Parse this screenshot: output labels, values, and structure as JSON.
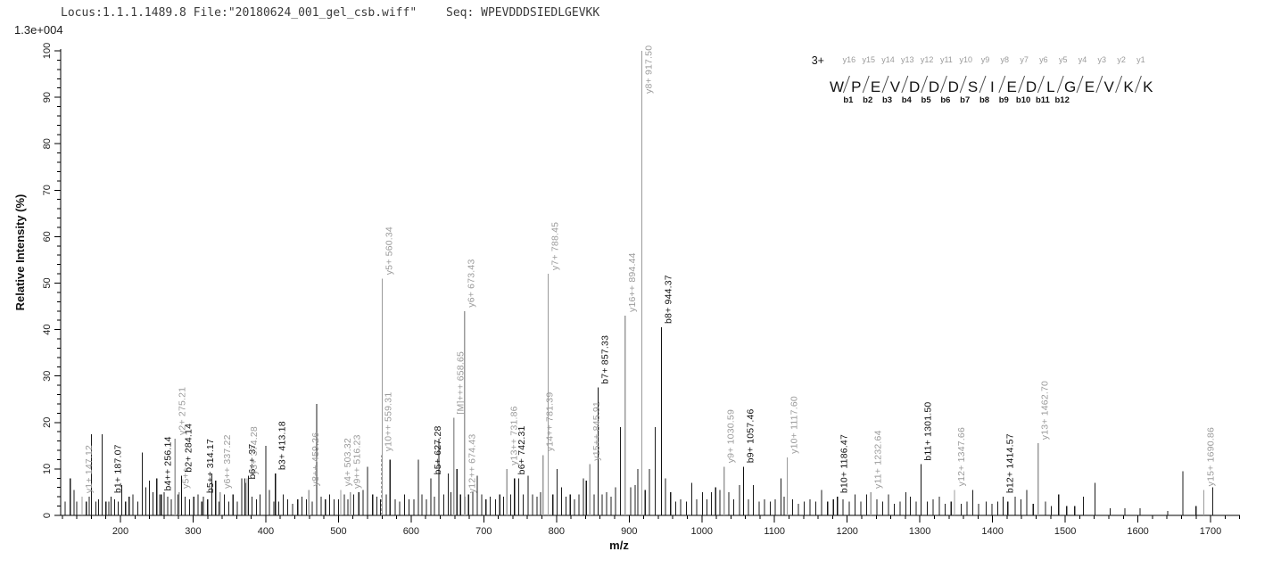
{
  "header": {
    "locus_file": "Locus:1.1.1.1489.8 File:\"20180624_001_gel_csb.wiff\"",
    "seq_label": "Seq: WPEVDDDSIEDLGEVKK",
    "scale_factor": "1.3e+004"
  },
  "axes": {
    "y_title": "Relative  Intensity  (%)",
    "x_title": "m/z",
    "y_ticks": [
      0,
      10,
      20,
      30,
      40,
      50,
      60,
      70,
      80,
      90,
      100
    ],
    "x_ticks": [
      200,
      300,
      400,
      500,
      600,
      700,
      800,
      900,
      1000,
      1100,
      1200,
      1300,
      1400,
      1500,
      1600,
      1700
    ],
    "x_minor_step": 20,
    "y_minor_step": 2,
    "xlim": [
      118,
      1741
    ],
    "ylim": [
      0,
      100
    ]
  },
  "peptide": {
    "charge": "3+",
    "sequence": [
      "W",
      "P",
      "E",
      "V",
      "D",
      "D",
      "D",
      "S",
      "I",
      "E",
      "D",
      "L",
      "G",
      "E",
      "V",
      "K",
      "K"
    ],
    "y_ions": [
      "y16",
      "y15",
      "y14",
      "y13",
      "y12",
      "y11",
      "y10",
      "y9",
      "y8",
      "y7",
      "y6",
      "y5",
      "y4",
      "y3",
      "y2",
      "y1"
    ],
    "b_ions": [
      "b1",
      "b2",
      "b3",
      "b4",
      "b5",
      "b6",
      "b7",
      "b8",
      "b9",
      "b10",
      "b11",
      "b12"
    ]
  },
  "colors": {
    "b_ion": "#111111",
    "y_ion": "#9b9b9b",
    "background_peak": "#1c1c1c",
    "axis": "#000000"
  },
  "chart_data": {
    "type": "bar",
    "chart_subtype": "MS/MS peptide fragmentation spectrum",
    "title": "",
    "xlabel": "m/z",
    "ylabel": "Relative Intensity (%)",
    "xlim": [
      118,
      1741
    ],
    "ylim": [
      0,
      100
    ],
    "intensity_full_scale": "1.3e+004",
    "labeled_peaks": [
      {
        "mz": 147.12,
        "intensity": 4,
        "label": "y1+ 147.12",
        "series": "y"
      },
      {
        "mz": 187.07,
        "intensity": 4,
        "label": "b1+ 187.07",
        "series": "b"
      },
      {
        "mz": 256.14,
        "intensity": 4.5,
        "label": "b4++ 256.14",
        "series": "b"
      },
      {
        "mz": 275.21,
        "intensity": 16.5,
        "label": "y2+ 275.21",
        "series": "y"
      },
      {
        "mz": 280.67,
        "intensity": 5,
        "label": "y5++",
        "series": "y"
      },
      {
        "mz": 284.14,
        "intensity": 8.5,
        "label": "b2+ 284.14",
        "series": "b"
      },
      {
        "mz": 314.17,
        "intensity": 4,
        "label": "b5++ 314.17",
        "series": "b"
      },
      {
        "mz": 337.22,
        "intensity": 5,
        "label": "y6++ 337.22",
        "series": "y"
      },
      {
        "mz": 371.69,
        "intensity": 7,
        "label": "b6++ 37",
        "series": "b"
      },
      {
        "mz": 374.28,
        "intensity": 8,
        "label": "y3+ 374.28",
        "series": "y"
      },
      {
        "mz": 413.18,
        "intensity": 9,
        "label": "b3+ 413.18",
        "series": "b"
      },
      {
        "mz": 459.26,
        "intensity": 5.5,
        "label": "y8++ 459.26",
        "series": "y"
      },
      {
        "mz": 503.32,
        "intensity": 5.5,
        "label": "y4+ 503.32",
        "series": "y"
      },
      {
        "mz": 516.23,
        "intensity": 5,
        "label": "y9++ 516.23",
        "series": "y"
      },
      {
        "mz": 559.31,
        "intensity": 13,
        "label": "y10++ 559.31",
        "series": "y",
        "dash": true
      },
      {
        "mz": 560.34,
        "intensity": 51,
        "label": "y5+ 560.34",
        "series": "y"
      },
      {
        "mz": 627.28,
        "intensity": 8,
        "label": "b5+ 627.28",
        "series": "b"
      },
      {
        "mz": 658.65,
        "intensity": 21,
        "label": "[M]+++ 658.65",
        "series": "y"
      },
      {
        "mz": 673.43,
        "intensity": 44,
        "label": "y6+ 673.43",
        "series": "y"
      },
      {
        "mz": 674.43,
        "intensity": 4,
        "label": "y12++ 674.43",
        "series": "y"
      },
      {
        "mz": 731.86,
        "intensity": 10,
        "label": "y13++ 731.86",
        "series": "y"
      },
      {
        "mz": 742.31,
        "intensity": 8,
        "label": "b6+ 742.31",
        "series": "b"
      },
      {
        "mz": 781.39,
        "intensity": 13,
        "label": "y14++ 781.39",
        "series": "y"
      },
      {
        "mz": 788.45,
        "intensity": 52,
        "label": "y7+ 788.45",
        "series": "y"
      },
      {
        "mz": 845.91,
        "intensity": 11,
        "label": "y15++ 845.91",
        "series": "y"
      },
      {
        "mz": 857.33,
        "intensity": 27.5,
        "label": "b7+ 857.33",
        "series": "b"
      },
      {
        "mz": 894.44,
        "intensity": 43,
        "label": "y16++ 894.44",
        "series": "y"
      },
      {
        "mz": 917.5,
        "intensity": 100,
        "label": "y8+ 917.50",
        "series": "y"
      },
      {
        "mz": 944.37,
        "intensity": 40.5,
        "label": "b8+ 944.37",
        "series": "b"
      },
      {
        "mz": 1030.59,
        "intensity": 10.5,
        "label": "y9+ 1030.59",
        "series": "y"
      },
      {
        "mz": 1057.46,
        "intensity": 10.5,
        "label": "b9+ 1057.46",
        "series": "b"
      },
      {
        "mz": 1117.6,
        "intensity": 12.5,
        "label": "y10+ 1117.60",
        "series": "y"
      },
      {
        "mz": 1186.47,
        "intensity": 4,
        "label": "b10+ 1186.47",
        "series": "b"
      },
      {
        "mz": 1232.64,
        "intensity": 5,
        "label": "y11+ 1232.64",
        "series": "y"
      },
      {
        "mz": 1301.5,
        "intensity": 11,
        "label": "b11+ 1301.50",
        "series": "b"
      },
      {
        "mz": 1347.66,
        "intensity": 5.5,
        "label": "y12+ 1347.66",
        "series": "y"
      },
      {
        "mz": 1414.57,
        "intensity": 4,
        "label": "b12+ 1414.57",
        "series": "b"
      },
      {
        "mz": 1462.7,
        "intensity": 15.5,
        "label": "y13+ 1462.70",
        "series": "y"
      },
      {
        "mz": 1690.86,
        "intensity": 5.5,
        "label": "y15+ 1690.86",
        "series": "y"
      }
    ],
    "background_peaks": [
      [
        124,
        3
      ],
      [
        131,
        8
      ],
      [
        136,
        5.5
      ],
      [
        140,
        3
      ],
      [
        153,
        3
      ],
      [
        157,
        4
      ],
      [
        160,
        17.5
      ],
      [
        166,
        3
      ],
      [
        170,
        3.5
      ],
      [
        175,
        17.5
      ],
      [
        180,
        3
      ],
      [
        184,
        3
      ],
      [
        192,
        3.5
      ],
      [
        197,
        3
      ],
      [
        202,
        6.5
      ],
      [
        207,
        3
      ],
      [
        212,
        4
      ],
      [
        217,
        4.5
      ],
      [
        224,
        3
      ],
      [
        230,
        13.5
      ],
      [
        235,
        6
      ],
      [
        240,
        7.5
      ],
      [
        245,
        5
      ],
      [
        250,
        8
      ],
      [
        254,
        4.5
      ],
      [
        260,
        5
      ],
      [
        265,
        4
      ],
      [
        270,
        3.5
      ],
      [
        279,
        4.5
      ],
      [
        289,
        4
      ],
      [
        295,
        3.5
      ],
      [
        301,
        4
      ],
      [
        307,
        4.5
      ],
      [
        312,
        3
      ],
      [
        320,
        3.5
      ],
      [
        326,
        9
      ],
      [
        331,
        7.5
      ],
      [
        336,
        3
      ],
      [
        343,
        4.5
      ],
      [
        349,
        3
      ],
      [
        355,
        4.5
      ],
      [
        361,
        3
      ],
      [
        367,
        8
      ],
      [
        371,
        8
      ],
      [
        376,
        8.5
      ],
      [
        381,
        4
      ],
      [
        387,
        3.5
      ],
      [
        392,
        4.5
      ],
      [
        400,
        15
      ],
      [
        405,
        5.5
      ],
      [
        411,
        3
      ],
      [
        418,
        3
      ],
      [
        424,
        4.5
      ],
      [
        430,
        3.5
      ],
      [
        437,
        2.5
      ],
      [
        444,
        3.5
      ],
      [
        450,
        4
      ],
      [
        456,
        3.5
      ],
      [
        464,
        3
      ],
      [
        470,
        24
      ],
      [
        476,
        4
      ],
      [
        482,
        3.5
      ],
      [
        488,
        4.5
      ],
      [
        494,
        3.5
      ],
      [
        500,
        3.5
      ],
      [
        508,
        4.5
      ],
      [
        513,
        3.5
      ],
      [
        521,
        4.5
      ],
      [
        528,
        5
      ],
      [
        534,
        5.5
      ],
      [
        540,
        10.5
      ],
      [
        547,
        4.5
      ],
      [
        553,
        4
      ],
      [
        558,
        3.5
      ],
      [
        566,
        4.5
      ],
      [
        571,
        12
      ],
      [
        578,
        3.5
      ],
      [
        584,
        3
      ],
      [
        591,
        4.5
      ],
      [
        597,
        3.5
      ],
      [
        604,
        3.5
      ],
      [
        610,
        12
      ],
      [
        615,
        4.5
      ],
      [
        621,
        3.5
      ],
      [
        632,
        4
      ],
      [
        638,
        16.5
      ],
      [
        645,
        4.5
      ],
      [
        651,
        9
      ],
      [
        655,
        5
      ],
      [
        663,
        10
      ],
      [
        668,
        4.5
      ],
      [
        679,
        4.5
      ],
      [
        685,
        5
      ],
      [
        691,
        8.5
      ],
      [
        697,
        4.5
      ],
      [
        703,
        3.5
      ],
      [
        709,
        4
      ],
      [
        716,
        3.5
      ],
      [
        722,
        4.5
      ],
      [
        727,
        4
      ],
      [
        737,
        4.5
      ],
      [
        748,
        8
      ],
      [
        754,
        4.5
      ],
      [
        761,
        8.5
      ],
      [
        767,
        4.5
      ],
      [
        773,
        4
      ],
      [
        778,
        5
      ],
      [
        795,
        4.5
      ],
      [
        801,
        10
      ],
      [
        807,
        6
      ],
      [
        813,
        4
      ],
      [
        819,
        4.5
      ],
      [
        825,
        3.5
      ],
      [
        831,
        4.5
      ],
      [
        837,
        8
      ],
      [
        841,
        7.5
      ],
      [
        852,
        4.5
      ],
      [
        863,
        4.5
      ],
      [
        869,
        5
      ],
      [
        875,
        4
      ],
      [
        881,
        6
      ],
      [
        888,
        19
      ],
      [
        902,
        6
      ],
      [
        908,
        6.5
      ],
      [
        912,
        10
      ],
      [
        922,
        5.5
      ],
      [
        928,
        10
      ],
      [
        936,
        19
      ],
      [
        950,
        8
      ],
      [
        957,
        5
      ],
      [
        964,
        3
      ],
      [
        971,
        3.5
      ],
      [
        979,
        3
      ],
      [
        986,
        7
      ],
      [
        993,
        3.5
      ],
      [
        1001,
        5
      ],
      [
        1007,
        3.5
      ],
      [
        1013,
        5
      ],
      [
        1019,
        6
      ],
      [
        1025,
        5.5
      ],
      [
        1037,
        5
      ],
      [
        1044,
        3.5
      ],
      [
        1052,
        6.5
      ],
      [
        1064,
        3.5
      ],
      [
        1071,
        6.5
      ],
      [
        1079,
        3
      ],
      [
        1086,
        3.5
      ],
      [
        1094,
        3
      ],
      [
        1101,
        3.5
      ],
      [
        1109,
        8
      ],
      [
        1113,
        4
      ],
      [
        1125,
        3.5
      ],
      [
        1133,
        2.5
      ],
      [
        1141,
        3
      ],
      [
        1149,
        3.5
      ],
      [
        1157,
        3
      ],
      [
        1165,
        5.5
      ],
      [
        1173,
        3
      ],
      [
        1181,
        3.5
      ],
      [
        1194,
        3.5
      ],
      [
        1203,
        3
      ],
      [
        1211,
        4.5
      ],
      [
        1219,
        3
      ],
      [
        1227,
        4.5
      ],
      [
        1241,
        3.5
      ],
      [
        1249,
        3
      ],
      [
        1257,
        4.5
      ],
      [
        1265,
        2.5
      ],
      [
        1273,
        3
      ],
      [
        1281,
        5
      ],
      [
        1287,
        4
      ],
      [
        1295,
        3
      ],
      [
        1310,
        3
      ],
      [
        1318,
        3.5
      ],
      [
        1327,
        4
      ],
      [
        1335,
        2.5
      ],
      [
        1343,
        3
      ],
      [
        1357,
        2.5
      ],
      [
        1365,
        3
      ],
      [
        1373,
        5.5
      ],
      [
        1381,
        2.5
      ],
      [
        1391,
        3
      ],
      [
        1399,
        2.5
      ],
      [
        1407,
        3
      ],
      [
        1421,
        3
      ],
      [
        1431,
        4
      ],
      [
        1439,
        3.5
      ],
      [
        1447,
        5.5
      ],
      [
        1456,
        2.5
      ],
      [
        1473,
        3
      ],
      [
        1481,
        2
      ],
      [
        1491,
        4.5
      ],
      [
        1502,
        2
      ],
      [
        1513,
        2
      ],
      [
        1525,
        4
      ],
      [
        1541,
        7
      ],
      [
        1562,
        1.5
      ],
      [
        1582,
        1.5
      ],
      [
        1603,
        1.5
      ],
      [
        1641,
        1
      ],
      [
        1662,
        9.5
      ],
      [
        1680,
        2
      ],
      [
        1703,
        6
      ]
    ]
  }
}
